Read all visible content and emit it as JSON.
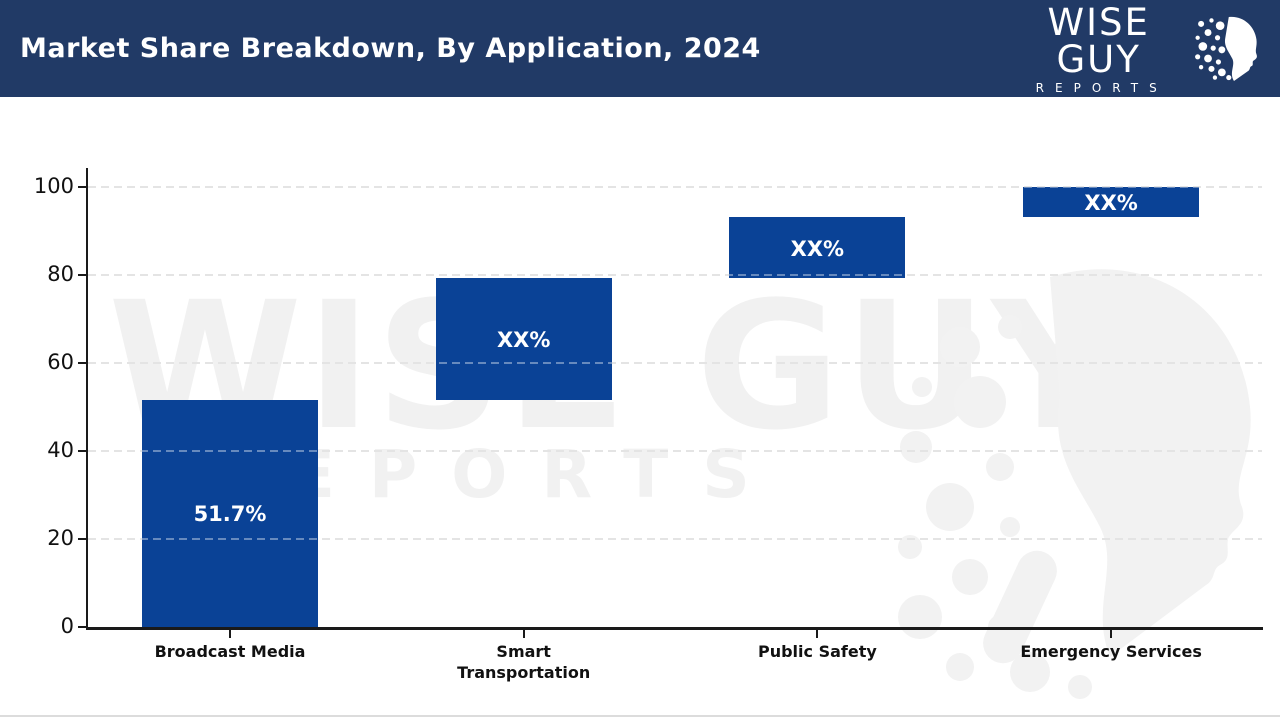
{
  "header": {
    "title": "Market Share Breakdown, By Application, 2024",
    "bg_color": "#213a66",
    "logo": {
      "line1": "WISE GUY",
      "line2": "REPORTS"
    }
  },
  "watermark": {
    "line1": "WISE GUY",
    "line2": "REPORTS"
  },
  "chart_data": {
    "type": "bar",
    "subtype": "waterfall",
    "title": "Market Share Breakdown, By Application, 2024",
    "categories": [
      "Broadcast Media",
      "Smart Transportation",
      "Public Safety",
      "Emergency Services"
    ],
    "bars": [
      {
        "category": "Broadcast Media",
        "tick_display": "Broadcast Media",
        "value_label": "51.7%",
        "start": 0,
        "end": 51.7
      },
      {
        "category": "Smart Transportation",
        "tick_display": "Smart\nTransportation",
        "value_label": "XX%",
        "start": 51.7,
        "end": 79.3
      },
      {
        "category": "Public Safety",
        "tick_display": "Public Safety",
        "value_label": "XX%",
        "start": 79.3,
        "end": 93.2
      },
      {
        "category": "Emergency Services",
        "tick_display": "Emergency Services",
        "value_label": "XX%",
        "start": 93.2,
        "end": 100
      }
    ],
    "yticks": [
      0,
      20,
      40,
      60,
      80,
      100
    ],
    "ylim": [
      0,
      104.5
    ],
    "xlabel": "",
    "ylabel": "",
    "bar_color": "#0a4296",
    "grid": "dashed-horizontal",
    "legend": "none",
    "axis_color": "#1a1a1a",
    "gridline_color": "#d4d4d4"
  }
}
